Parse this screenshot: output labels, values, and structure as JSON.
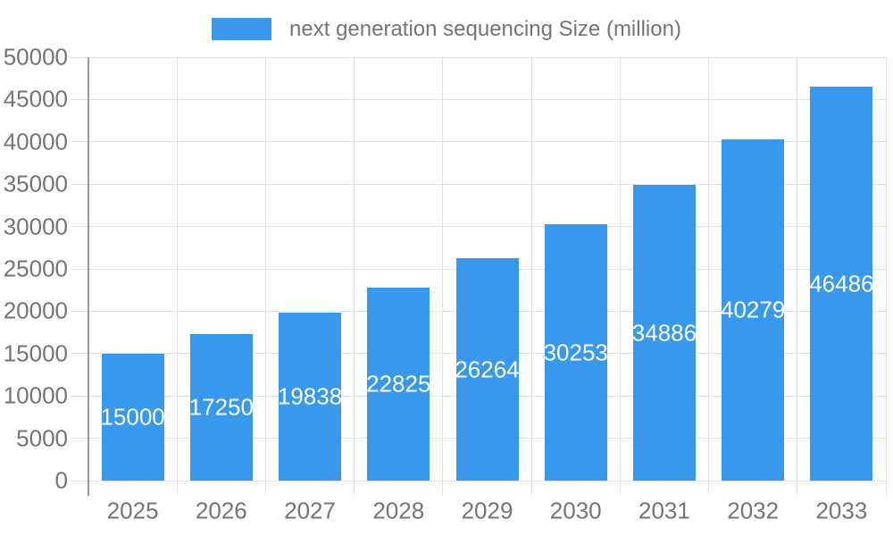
{
  "legend": {
    "label": "next generation sequencing Size (million)"
  },
  "chart_data": {
    "type": "bar",
    "title": "",
    "series_name": "next generation sequencing Size (million)",
    "categories": [
      "2025",
      "2026",
      "2027",
      "2028",
      "2029",
      "2030",
      "2031",
      "2032",
      "2033"
    ],
    "values": [
      15000,
      17250,
      19838,
      22825,
      26264,
      30253,
      34886,
      40279,
      46486
    ],
    "bar_labels": [
      "15000",
      "17250",
      "19838",
      "22825",
      "26264",
      "30253",
      "34886",
      "40279",
      "46486"
    ],
    "xlabel": "",
    "ylabel": "",
    "ylim": [
      0,
      50000
    ],
    "ytick_step": 5000,
    "yticks": [
      "0",
      "5000",
      "10000",
      "15000",
      "20000",
      "25000",
      "30000",
      "35000",
      "40000",
      "45000",
      "50000"
    ],
    "grid": "on",
    "legend_position": "top",
    "bar_label_position": "middle",
    "colors": {
      "bar": "#3899ec",
      "bar_label": "#ffffff",
      "axis_text": "#757575",
      "grid_line": "#e2e2e2",
      "axis_line": "#999999",
      "background": "#ffffff"
    }
  }
}
